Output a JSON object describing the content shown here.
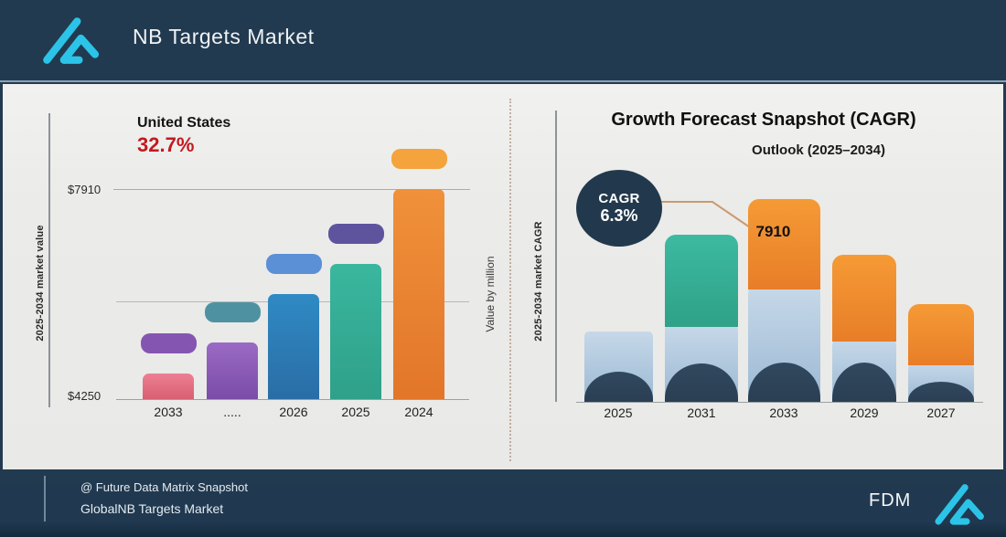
{
  "header": {
    "title": "NB Targets Market",
    "brand_color": "#2bc4e8"
  },
  "left_chart": {
    "heading": "United States",
    "highlight_value": "32.7%",
    "y_axis_label": "2025-2034 market value",
    "right_axis_label": "Value by million",
    "tick_top": "$7910",
    "tick_bottom": "$4250"
  },
  "right_chart": {
    "title": "Growth Forecast Snapshot (CAGR)",
    "subtitle": "Outlook (2025–2034)",
    "y_axis_label": "2025-2034 market CAGR",
    "badge": {
      "label": "CAGR",
      "value": "6.3%"
    },
    "bar_annotation": "7910"
  },
  "footer": {
    "line1": "@ Future Data Matrix Snapshot",
    "line2": "GlobalNB Targets Market",
    "brand": "FDM"
  },
  "chart_data": [
    {
      "type": "bar",
      "title": "United States",
      "annotation": "32.7%",
      "ylabel": "2025-2034 market value",
      "ylabel_right": "Value by million",
      "ylim": [
        4250,
        7910
      ],
      "yticks": [
        "$4250",
        "$7910"
      ],
      "grid": true,
      "categories": [
        "2033",
        ".....",
        "2026",
        "2025",
        "2024"
      ],
      "values": [
        4700,
        5240,
        6080,
        6600,
        7910
      ],
      "bars": [
        {
          "label": "2033",
          "value": 4700,
          "color_top": "#ed7f92",
          "color_bottom": "#d95f72",
          "cap_color": "#8456b2"
        },
        {
          "label": ".....",
          "value": 5240,
          "color_top": "#9a6ac4",
          "color_bottom": "#7b4ca8",
          "cap_color": "#4e92a2"
        },
        {
          "label": "2026",
          "value": 6080,
          "color_top": "#2f8ac4",
          "color_bottom": "#2a6da6",
          "cap_color": "#5b8fd6"
        },
        {
          "label": "2025",
          "value": 6600,
          "color_top": "#3ab79e",
          "color_bottom": "#2fa08a",
          "cap_color": "#5e549e"
        },
        {
          "label": "2024",
          "value": 7910,
          "color_top": "#f0913a",
          "color_bottom": "#e2762a",
          "cap_color": "#f4a33d"
        }
      ]
    },
    {
      "type": "stacked-bar",
      "title": "Growth Forecast Snapshot (CAGR)",
      "subtitle": "Outlook (2025–2034)",
      "ylabel": "2025-2034 market CAGR",
      "badge": "CAGR 6.3%",
      "legend": false,
      "categories": [
        "2025",
        "2031",
        "2033",
        "2029",
        "2027"
      ],
      "segment_colors": {
        "base": "#2d4156",
        "mid": "#b7cde1",
        "teal": "#35b096",
        "orange": "#f19133"
      },
      "bars": [
        {
          "label": "2025",
          "base_h": 33,
          "mid_h": 77,
          "top_h": 0,
          "top_color": null,
          "annotation": null
        },
        {
          "label": "2031",
          "base_h": 42,
          "mid_h": 84,
          "top_h": 99,
          "top_color": "teal",
          "annotation": null
        },
        {
          "label": "2033",
          "base_h": 43,
          "mid_h": 125,
          "top_h": 97,
          "top_color": "orange",
          "annotation": "7910"
        },
        {
          "label": "2029",
          "base_h": 43,
          "mid_h": 68,
          "top_h": 93,
          "top_color": "orange",
          "annotation": null
        },
        {
          "label": "2027",
          "base_h": 22,
          "mid_h": 42,
          "top_h": 65,
          "top_color": "orange",
          "annotation": null
        }
      ]
    }
  ]
}
